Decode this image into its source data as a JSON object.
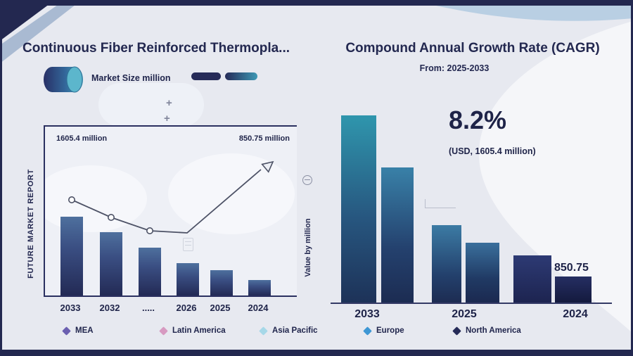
{
  "page": {
    "bg_color": "#e7e9f0",
    "navy": "#232850",
    "accent_teal": "#3e98b4"
  },
  "left_panel": {
    "title": "Continuous Fiber Reinforced Thermopla...",
    "legend": {
      "icon": "cylinder-3d-icon",
      "label": "Market Size million"
    },
    "side_label": "FUTURE MARKET REPORT",
    "value_axis_label": "Value by million",
    "decor": {
      "plus": "+"
    }
  },
  "right_panel": {
    "title": "Compound Annual Growth Rate (CAGR)",
    "subtitle": "From: 2025-2033",
    "cagr": "8.2%",
    "cagr_note": "(USD, 1605.4 million)"
  },
  "footer": {
    "legend_items": [
      {
        "label": "MEA",
        "color": "#6b5fb0"
      },
      {
        "label": "Latin America",
        "color": "#d79ac1"
      },
      {
        "label": "Asia Pacific",
        "color": "#a6d8e8"
      },
      {
        "label": "Europe",
        "color": "#3e97d4"
      },
      {
        "label": "North America",
        "color": "#262b58"
      }
    ]
  },
  "chart_data": [
    {
      "id": "market-size-trend",
      "type": "bar",
      "title": "Market Size million",
      "categories": [
        "2033",
        "2032",
        ".....",
        "2026",
        "2025",
        "2024"
      ],
      "values_relative": [
        1.0,
        0.8,
        0.61,
        0.41,
        0.32,
        0.2
      ],
      "axis_values_shown": false,
      "ylabel": "Value by million",
      "annotations": [
        {
          "text": "1605.4 million",
          "position": "top-left"
        },
        {
          "text": "850.75 million",
          "position": "top-right"
        }
      ],
      "overlay": "declining marker line with upward trend arrow"
    },
    {
      "id": "cagr-by-year",
      "type": "bar",
      "title": "Compound Annual Growth Rate (CAGR)",
      "subtitle": "From: 2025-2033",
      "categories": [
        "2033",
        "2025",
        "2024"
      ],
      "series": [
        {
          "name": "bar-1",
          "values_relative": [
            1.0,
            0.413,
            0.252
          ]
        },
        {
          "name": "bar-2",
          "values_relative": [
            0.722,
            0.32,
            0.139
          ]
        }
      ],
      "axis_values_shown": false,
      "annotations": [
        {
          "text": "850.75",
          "position": "beside-2024-bars"
        }
      ]
    }
  ]
}
